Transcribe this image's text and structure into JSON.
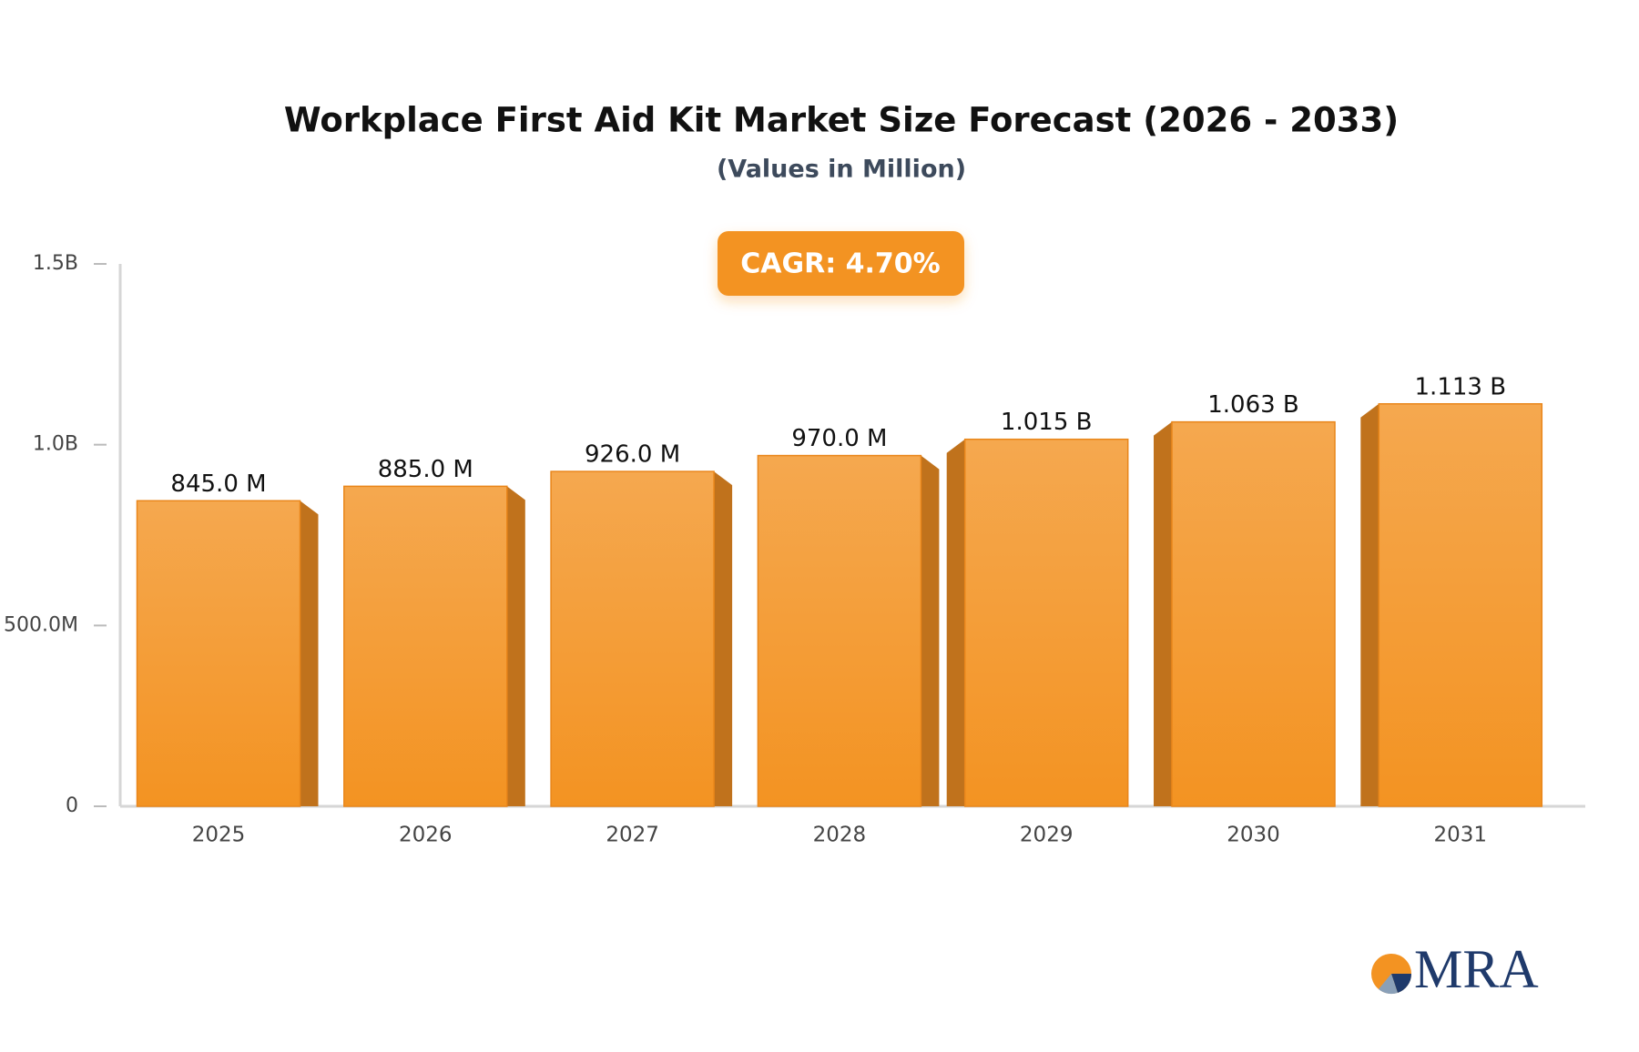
{
  "chart_data": {
    "type": "bar",
    "title": "Workplace First Aid Kit Market Size Forecast (2026 - 2033)",
    "subtitle": "(Values in Million)",
    "annotation": "CAGR: 4.70%",
    "logo": "MRA",
    "categories": [
      "2025",
      "2026",
      "2027",
      "2028",
      "2029",
      "2030",
      "2031"
    ],
    "values": [
      845,
      885,
      926,
      970,
      1015,
      1063,
      1113
    ],
    "value_labels": [
      "845.0 M",
      "885.0 M",
      "926.0 M",
      "970.0 M",
      "1.015 B",
      "1.063 B",
      "1.113 B"
    ],
    "color": "#f5a040",
    "ylim": [
      0,
      1500
    ],
    "yticks": [
      0,
      {
        "value": 500,
        "label": "500.0M"
      },
      {
        "value": 1000,
        "label": "1.0B"
      },
      {
        "value": 1500,
        "label": "1.5B"
      }
    ],
    "grid": false
  }
}
